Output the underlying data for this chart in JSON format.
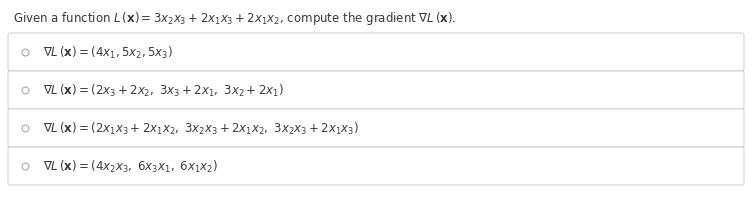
{
  "background_color": "#ffffff",
  "question_text": "Given a function $L\\,(\\mathbf{x}) = 3x_2x_3 + 2x_1x_3 + 2x_1x_2$, compute the gradient $\\nabla L\\,(\\mathbf{x})$.",
  "options": [
    "$\\nabla L\\,(\\mathbf{x}) = (4x_1, 5x_2, 5x_3)$",
    "$\\nabla L\\,(\\mathbf{x}) = (2x_3 + 2x_2,\\ 3x_3 + 2x_1,\\ 3x_2 + 2x_1)$",
    "$\\nabla L\\,(\\mathbf{x}) = (2x_1x_3 + 2x_1x_2,\\ 3x_2x_3 + 2x_1x_2,\\ 3x_2x_3 + 2x_1x_3)$",
    "$\\nabla L\\,(\\mathbf{x}) = (4x_2x_3,\\ 6x_3x_1,\\ 6x_1x_2)$"
  ],
  "box_edge_color": "#cccccc",
  "text_color": "#3a3a3a",
  "question_fontsize": 8.5,
  "option_fontsize": 8.5,
  "radio_color": "#aaaaaa",
  "fig_width": 7.52,
  "fig_height": 2.03,
  "dpi": 100
}
